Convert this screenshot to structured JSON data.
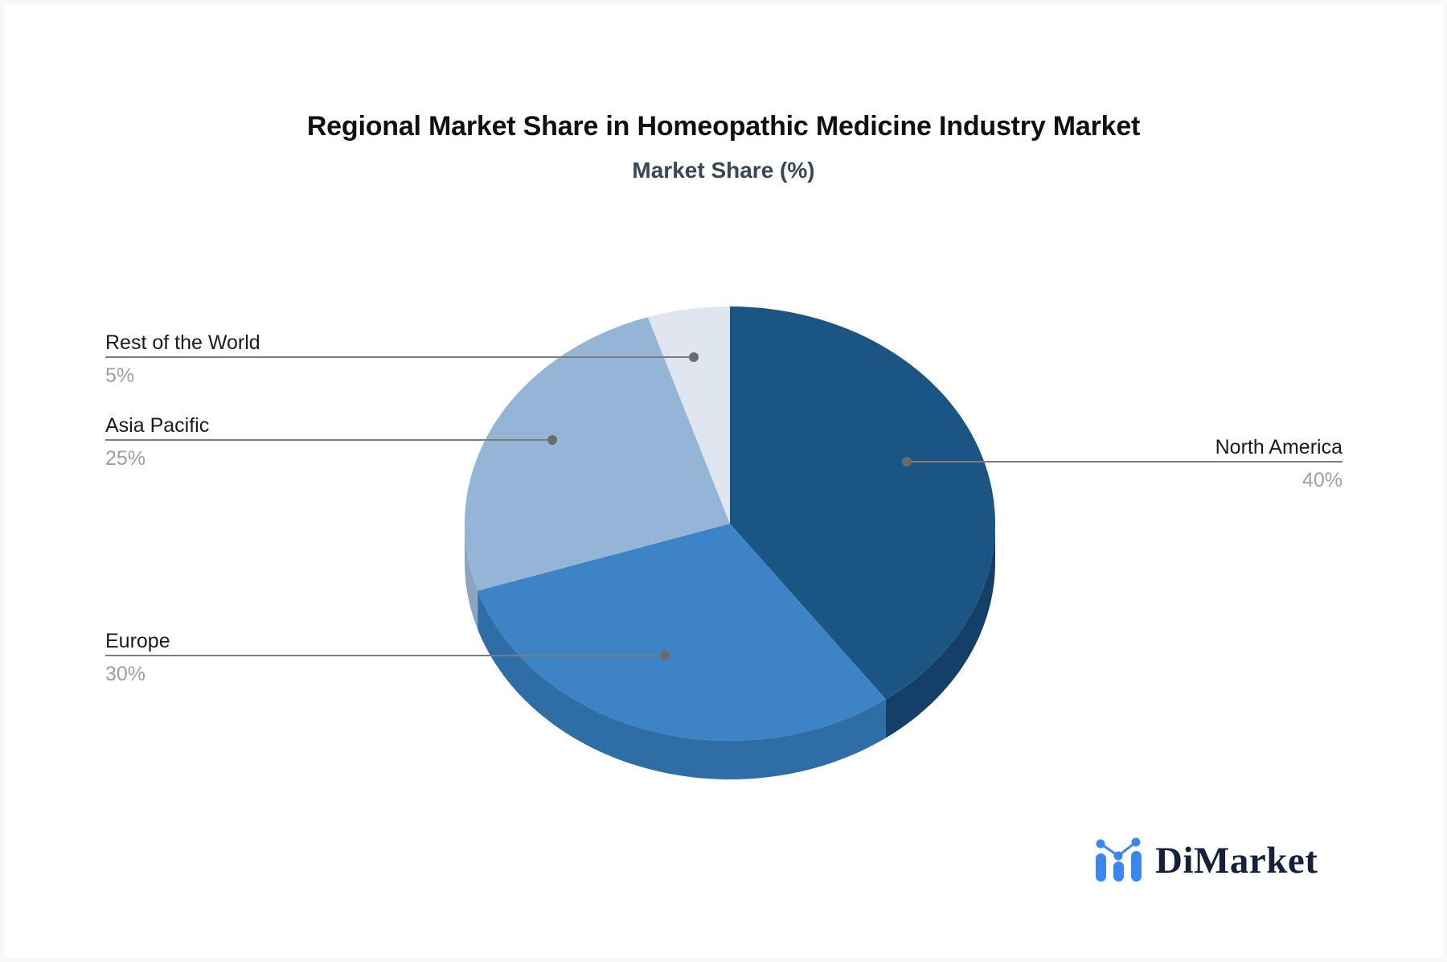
{
  "page": {
    "background": "#F7F8FA",
    "card_background": "#FFFFFF"
  },
  "header": {
    "title": "Regional Market Share in Homeopathic Medicine Industry Market",
    "subtitle": "Market Share (%)"
  },
  "chart_data": {
    "type": "pie",
    "style": "3d",
    "title": "Regional Market Share in Homeopathic Medicine Industry Market",
    "subtitle": "Market Share (%)",
    "unit": "%",
    "direction": "clockwise",
    "start_angle_deg": 0,
    "legend_position": "callout-labels",
    "segments": [
      {
        "label": "North America",
        "value": 40,
        "display_value": "40%",
        "color": "#1A5584",
        "side_color": "#143F68",
        "callout_side": "right"
      },
      {
        "label": "Europe",
        "value": 30,
        "display_value": "30%",
        "color": "#3C84C6",
        "side_color": "#2F6DA6",
        "callout_side": "left"
      },
      {
        "label": "Asia Pacific",
        "value": 25,
        "display_value": "25%",
        "color": "#95B5D7",
        "side_color": "#8BA4BF",
        "callout_side": "left"
      },
      {
        "label": "Rest of the World",
        "value": 5,
        "display_value": "5%",
        "color": "#DFE6F0",
        "side_color": "#C8D3E1",
        "callout_side": "left"
      }
    ]
  },
  "callout_style": {
    "line_color": "#7C7C7C",
    "dot_color": "#6B6B6B",
    "label_color": "#1B1B1B",
    "value_color": "#9AA0A8"
  },
  "brand": {
    "name": "DiMarket",
    "icon": "bar-chart-trend-icon",
    "icon_color": "#3B86F0",
    "text_color": "#15213A"
  }
}
